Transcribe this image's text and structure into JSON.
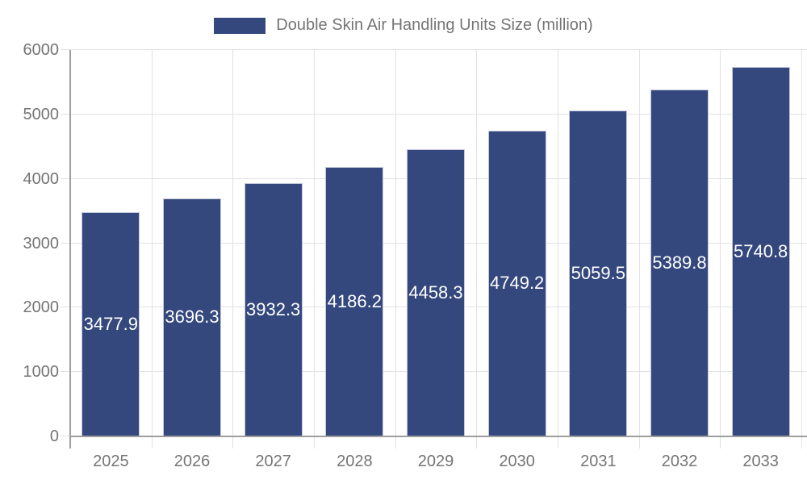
{
  "chart_data": {
    "type": "bar",
    "title": "",
    "legend": {
      "label": "Double Skin Air Handling Units Size (million)",
      "position": "top"
    },
    "categories": [
      "2025",
      "2026",
      "2027",
      "2028",
      "2029",
      "2030",
      "2031",
      "2032",
      "2033"
    ],
    "series": [
      {
        "name": "Double Skin Air Handling Units Size (million)",
        "values": [
          3477.9,
          3696.3,
          3932.3,
          4186.2,
          4458.3,
          4749.2,
          5059.5,
          5389.8,
          5740.8
        ]
      }
    ],
    "bar_value_labels": [
      "3477.9",
      "3696.3",
      "3932.3",
      "4186.2",
      "4458.3",
      "4749.2",
      "5059.5",
      "5389.8",
      "5740.8"
    ],
    "xlabel": "",
    "ylabel": "",
    "ylim": [
      0,
      6000
    ],
    "yticks": [
      0,
      1000,
      2000,
      3000,
      4000,
      5000,
      6000
    ],
    "grid": true,
    "legend_position": "top-center",
    "colors": {
      "bar": "#35487D",
      "bar_border": "#C3C8DC",
      "bar_label": "#FFFFFF",
      "grid": "#E2E2E2",
      "axis": "#9E9E9E",
      "tick_label": "#757575",
      "legend_text": "#757575",
      "background": "#FFFFFF"
    }
  }
}
